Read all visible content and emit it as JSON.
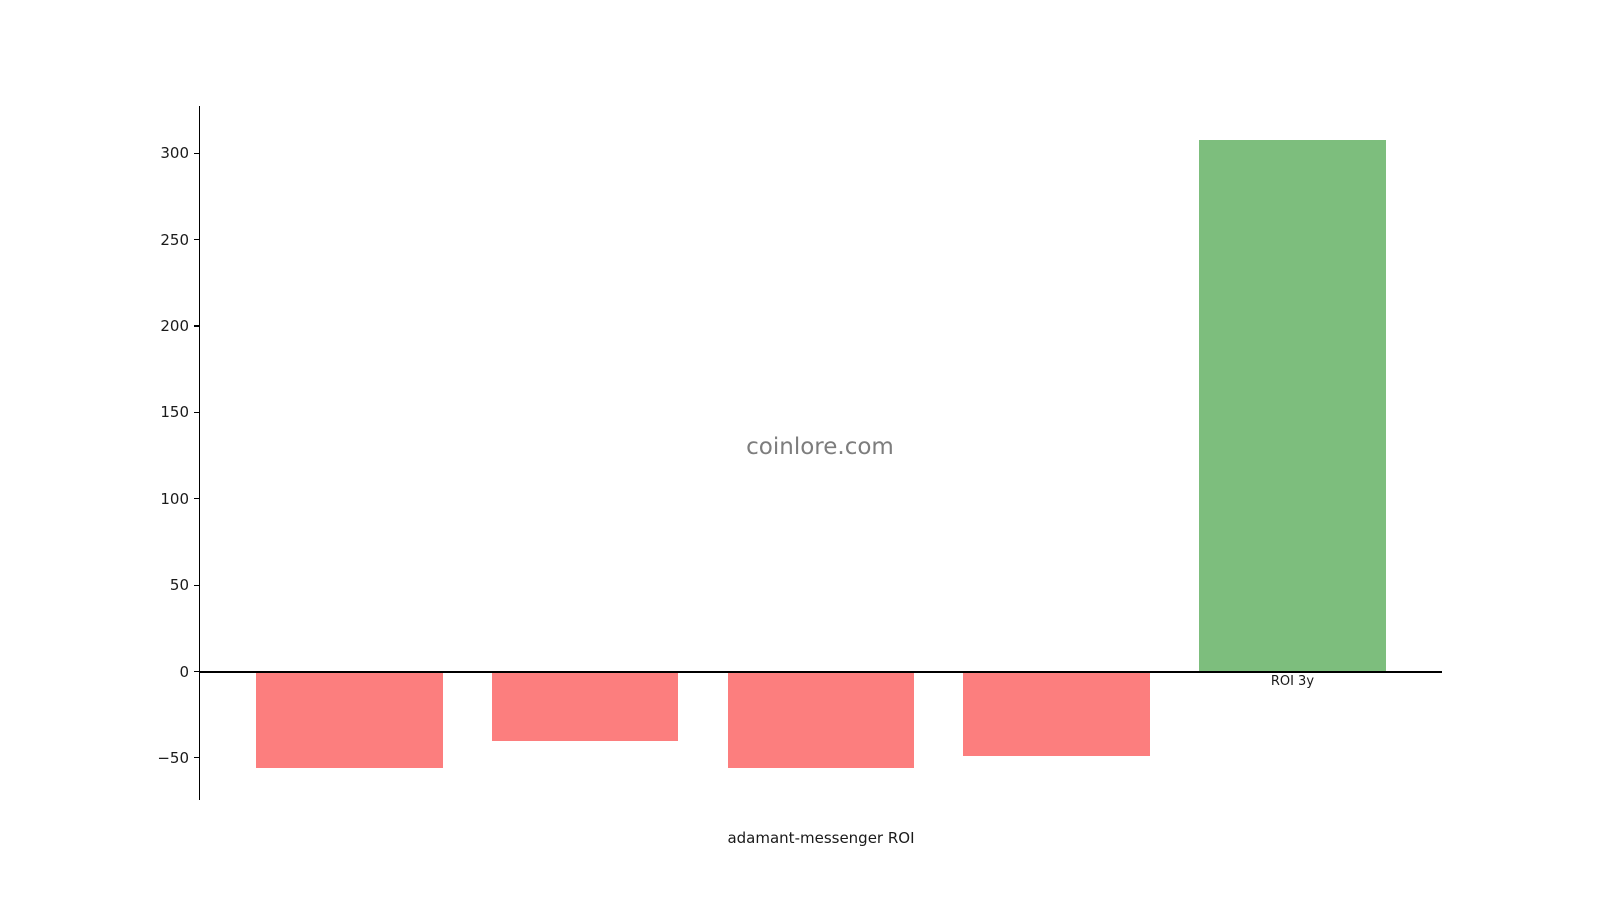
{
  "chart_data": {
    "type": "bar",
    "title": "adamant-messenger ROI",
    "xlabel": "adamant-messenger ROI",
    "ylabel": "",
    "categories": [
      "",
      "",
      "",
      "",
      "ROI 3y"
    ],
    "values": [
      -56,
      -40,
      -56,
      -49,
      308
    ],
    "bar_colors": [
      "#fc7e7e",
      "#fc7e7e",
      "#fc7e7e",
      "#fc7e7e",
      "#7dbe7d"
    ],
    "negative_color": "#fc7e7e",
    "positive_color": "#7dbe7d",
    "yticks": [
      300,
      250,
      200,
      150,
      100,
      50,
      0,
      -50
    ],
    "ylim": [
      -74,
      328
    ],
    "grid": false,
    "legend": null,
    "axis_color": "#000000",
    "tick_label_color": "#1a1a1a",
    "background_color": "#ffffff",
    "watermark": "coinlore.com",
    "watermark_color": "#7d7d7d"
  }
}
